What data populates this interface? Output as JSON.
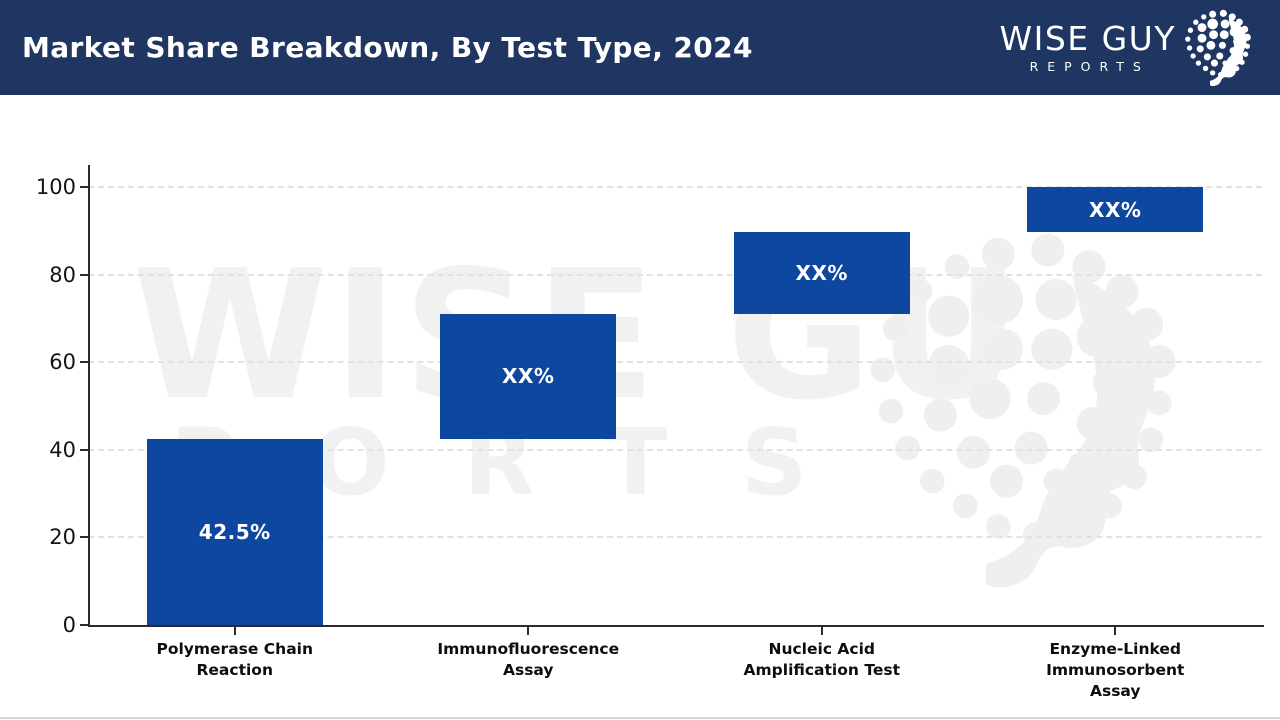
{
  "header": {
    "title": "Market Share Breakdown, By Test Type, 2024",
    "logo": {
      "wordmark": "WISE GUY",
      "subtext": "REPORTS"
    },
    "bg_color": "#1f3663",
    "text_color": "#ffffff"
  },
  "watermark": {
    "line1": "WISE GU",
    "line2": "PORTS",
    "color": "#f1f1f1"
  },
  "chart_data": {
    "type": "bar",
    "subtype": "waterfall",
    "title": "Market Share Breakdown, By Test Type, 2024",
    "categories": [
      "Polymerase Chain\nReaction",
      "Immunofluorescence\nAssay",
      "Nucleic Acid\nAmplification Test",
      "Enzyme-Linked\nImmunosorbent\nAssay"
    ],
    "segments": [
      {
        "start": 0,
        "end": 42.5,
        "label": "42.5%"
      },
      {
        "start": 42.5,
        "end": 71,
        "label": "XX%"
      },
      {
        "start": 71,
        "end": 89.7,
        "label": "XX%"
      },
      {
        "start": 89.7,
        "end": 100,
        "label": "XX%"
      }
    ],
    "xlabel": "",
    "ylabel": "",
    "ylim": [
      0,
      100
    ],
    "yticks": [
      0,
      20,
      40,
      60,
      80,
      100
    ],
    "grid": true,
    "grid_style": "dashed",
    "legend": false,
    "bar_color": "#0e47a0",
    "bar_label_color": "#ffffff",
    "axis_color": "#2b2b2b"
  },
  "colors": {
    "header_bg": "#1f3663",
    "bar_blue": "#0e47a0",
    "watermark_gray": "#f1f1f1",
    "bottom_divider": "#d6d6d6"
  }
}
